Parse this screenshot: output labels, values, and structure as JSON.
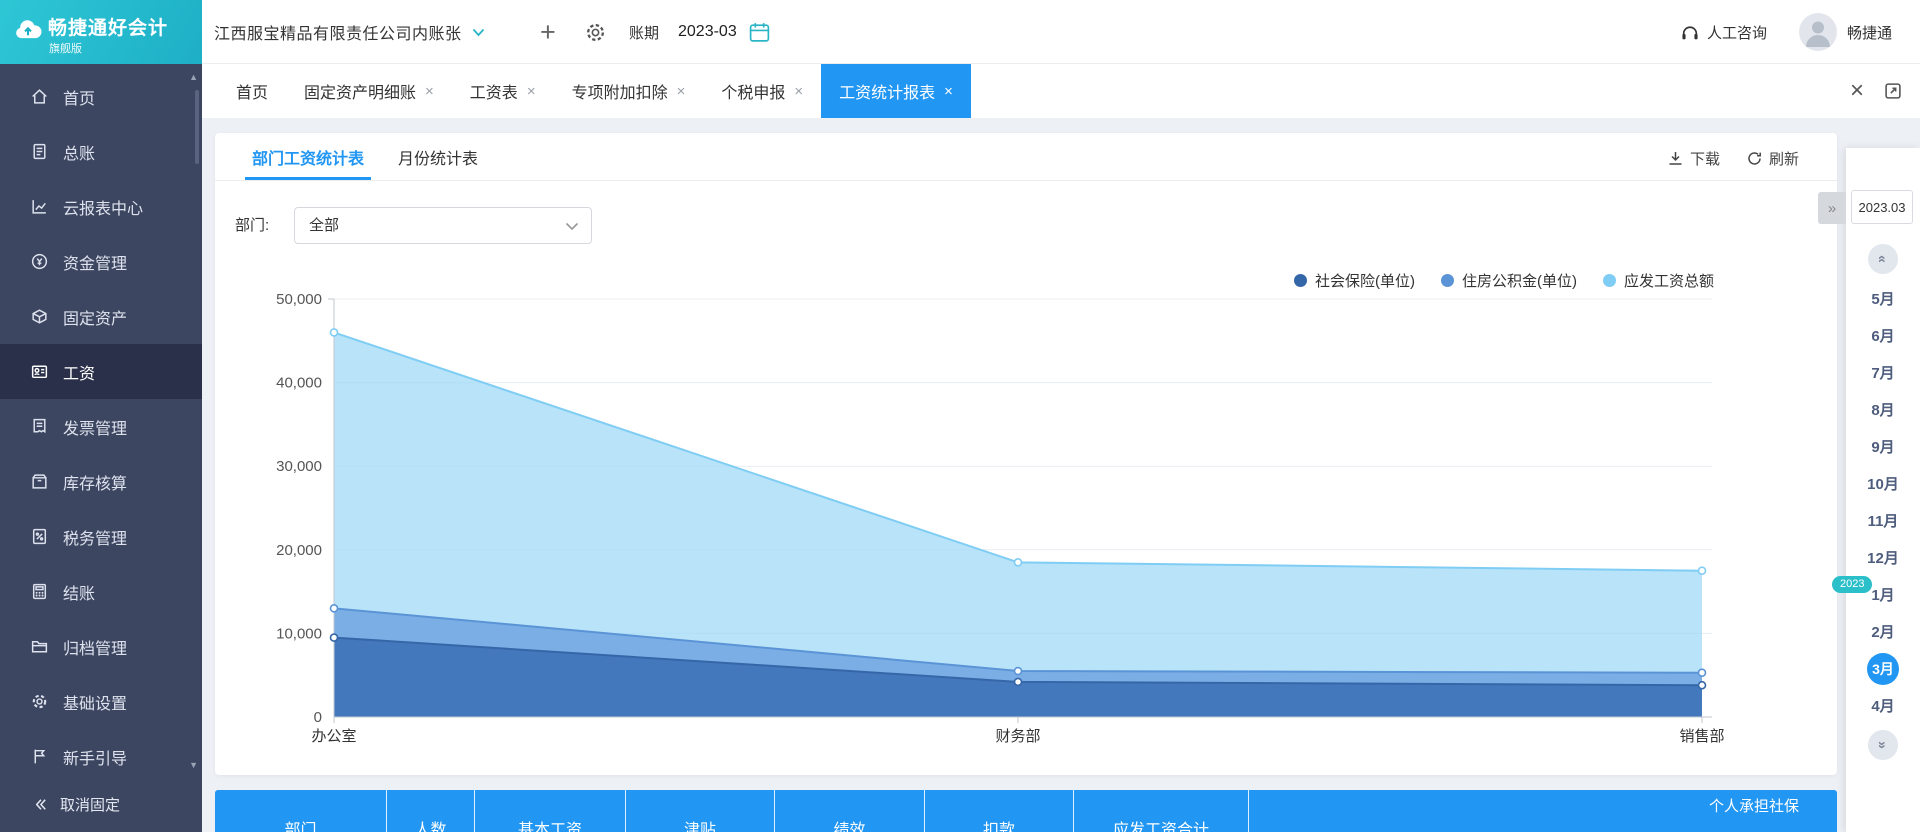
{
  "icons": {
    "plus": "+",
    "close": "×",
    "collapse_handle": "»",
    "double_chevron_up": "«",
    "double_chevron_down": "»",
    "scroll_up": "▲",
    "scroll_down": "▼"
  },
  "topbar": {
    "brand_title": "畅捷通好会计",
    "brand_edition": "旗舰版",
    "company": "江西服宝精品有限责任公司内账张",
    "period_label": "账期",
    "period_value": "2023-03",
    "support_label": "人工咨询",
    "user_name": "畅捷通"
  },
  "sidebar": {
    "items": [
      {
        "label": "首页"
      },
      {
        "label": "总账"
      },
      {
        "label": "云报表中心"
      },
      {
        "label": "资金管理"
      },
      {
        "label": "固定资产"
      },
      {
        "label": "工资"
      },
      {
        "label": "发票管理"
      },
      {
        "label": "库存核算"
      },
      {
        "label": "税务管理"
      },
      {
        "label": "结账"
      },
      {
        "label": "归档管理"
      },
      {
        "label": "基础设置"
      },
      {
        "label": "新手引导"
      }
    ],
    "unpin_label": "取消固定"
  },
  "tabs": {
    "items": [
      {
        "label": "首页"
      },
      {
        "label": "固定资产明细账"
      },
      {
        "label": "工资表"
      },
      {
        "label": "专项附加扣除"
      },
      {
        "label": "个税申报"
      },
      {
        "label": "工资统计报表"
      }
    ]
  },
  "report": {
    "subtab_department": "部门工资统计表",
    "subtab_month": "月份统计表",
    "download_label": "下载",
    "refresh_label": "刷新",
    "filter_label": "部门:",
    "filter_value": "全部"
  },
  "chart_data": {
    "type": "area",
    "categories": [
      "办公室",
      "财务部",
      "销售部"
    ],
    "series": [
      {
        "name": "应发工资总额",
        "values": [
          46000,
          18500,
          17500
        ],
        "fill": "#A6DCF7",
        "line": "#7FCDF4",
        "fill_opacity": 0.8
      },
      {
        "name": "住房公积金(单位)",
        "values": [
          13000,
          5500,
          5300
        ],
        "fill": "#6FA5E0",
        "line": "#5B94D6",
        "fill_opacity": 0.85
      },
      {
        "name": "社会保险(单位)",
        "values": [
          9500,
          4200,
          3800
        ],
        "fill": "#3E72B8",
        "line": "#3566A8",
        "fill_opacity": 0.9
      }
    ],
    "legend": [
      "社会保险(单位)",
      "住房公积金(单位)",
      "应发工资总额"
    ],
    "ylim": [
      0,
      50000
    ],
    "ytick_step": 10000,
    "grid": true,
    "legend_position": "top-right"
  },
  "table": {
    "columns": [
      "部门",
      "人数",
      "基本工资",
      "津贴",
      "绩效",
      "扣款",
      "应发工资合计"
    ],
    "group_header": "个人承担社保"
  },
  "month_panel": {
    "current": "2023.03",
    "year_badge": "2023",
    "months": [
      "5月",
      "6月",
      "7月",
      "8月",
      "9月",
      "10月",
      "11月",
      "12月",
      "1月",
      "2月",
      "3月",
      "4月"
    ],
    "active_month": "3月"
  }
}
